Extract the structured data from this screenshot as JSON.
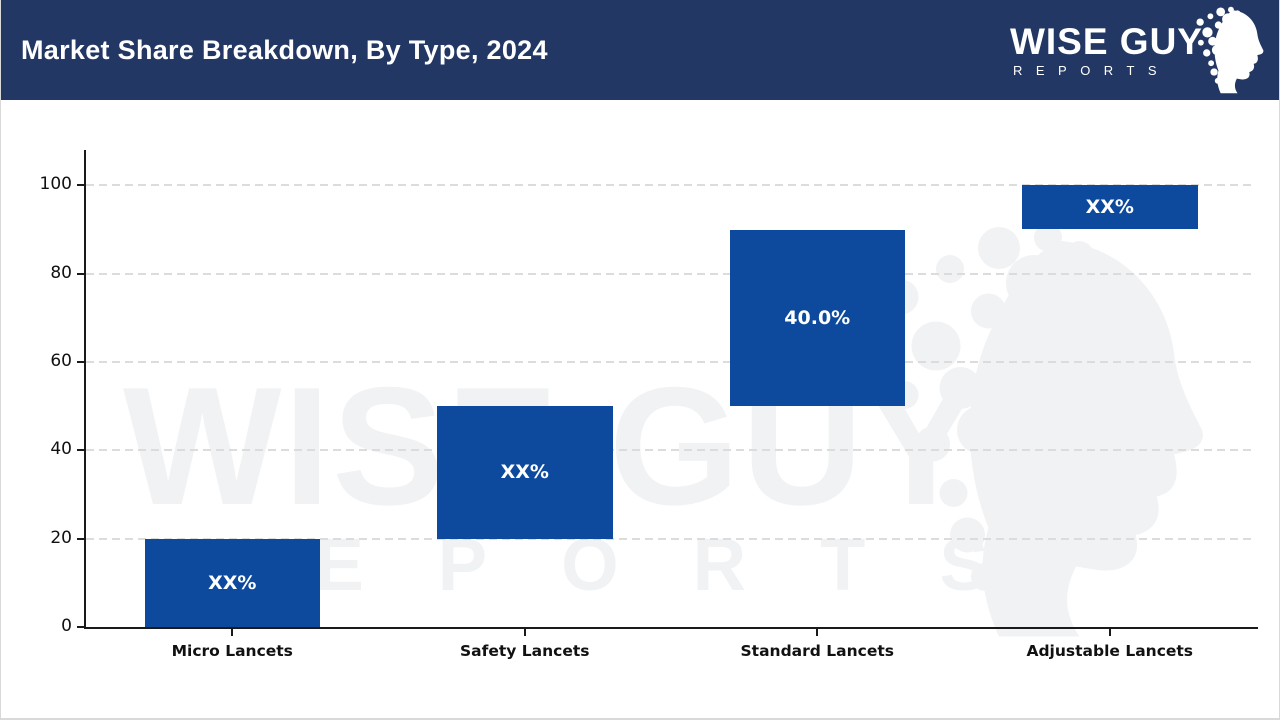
{
  "header": {
    "logo": {
      "line1": "WISE GUY",
      "line2": "REPORTS"
    }
  },
  "watermark": {
    "line1": "WISE GUY",
    "line2": "REPORTS"
  },
  "colors": {
    "header_bg": "#233764",
    "bar": "#0d4a9e",
    "grid": "#dcdcdc",
    "axis": "#1a1a1a",
    "border": "#d9d9d9",
    "watermark": "#f1f2f4",
    "bar_label": "#ffffff",
    "title_text": "#ffffff"
  },
  "chart_data": {
    "type": "bar",
    "subtype": "waterfall",
    "title": "Market Share Breakdown, By Type, 2024",
    "xlabel": "",
    "ylabel": "",
    "categories": [
      "Micro Lancets",
      "Safety Lancets",
      "Standard Lancets",
      "Adjustable Lancets"
    ],
    "segments": [
      {
        "start": 0,
        "end": 20,
        "label": "XX%"
      },
      {
        "start": 20,
        "end": 50,
        "label": "XX%"
      },
      {
        "start": 50,
        "end": 90,
        "label": "40.0%"
      },
      {
        "start": 90,
        "end": 100,
        "label": "XX%"
      }
    ],
    "yticks": [
      0,
      20,
      40,
      60,
      80,
      100
    ],
    "ylim": [
      0,
      108
    ],
    "grid": true,
    "legend": "none"
  }
}
